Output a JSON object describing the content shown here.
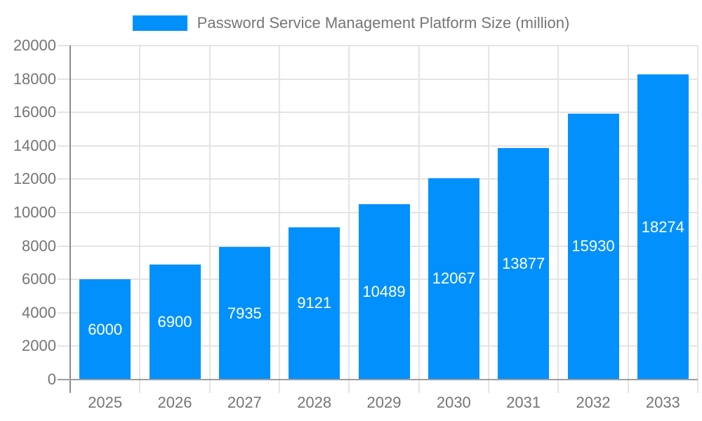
{
  "page": {
    "background": "#ffffff"
  },
  "legend": {
    "label": "Password Service Management Platform Size (million)",
    "swatch_color": "#0291fc"
  },
  "chart_data": {
    "type": "bar",
    "title": "Password Service Management Platform Size (million)",
    "categories": [
      "2025",
      "2026",
      "2027",
      "2028",
      "2029",
      "2030",
      "2031",
      "2032",
      "2033"
    ],
    "series": [
      {
        "name": "Password Service Management Platform Size (million)",
        "values": [
          6000,
          6900,
          7935,
          9121,
          10489,
          12067,
          13877,
          15930,
          18274
        ]
      }
    ],
    "xlabel": "",
    "ylabel": "",
    "ylim": [
      0,
      20000
    ],
    "ytick_step": 2000,
    "yticks": [
      0,
      2000,
      4000,
      6000,
      8000,
      10000,
      12000,
      14000,
      16000,
      18000,
      20000
    ],
    "grid": true,
    "legend_position": "top",
    "value_labels_inside_bars": true,
    "colors": {
      "bar": "#0291fc",
      "bar_label": "#ffffff",
      "axis_text": "#757575",
      "grid_line": "#e4e4e4",
      "y_axis_line": "#8c8c8c",
      "x_axis_line": "#9e9e9e"
    }
  }
}
